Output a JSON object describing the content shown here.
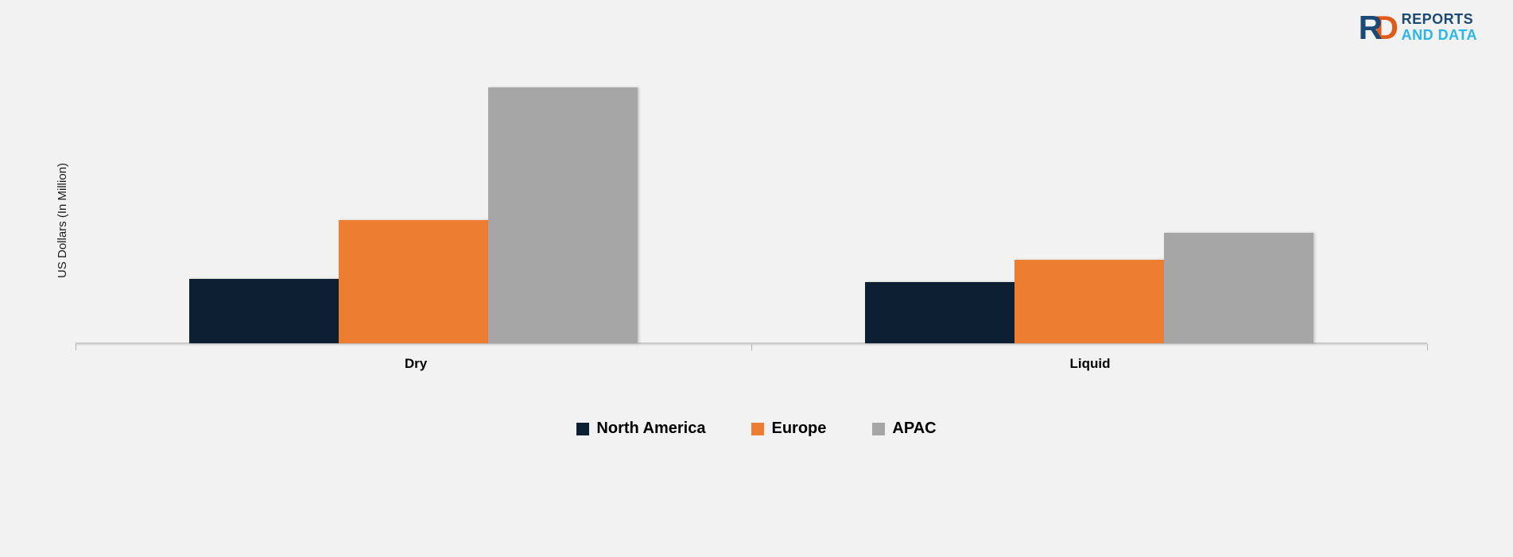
{
  "logo": {
    "mark_letter_r": "R",
    "mark_letter_d": "D",
    "line1": "REPORTS",
    "line2": "AND DATA",
    "color_navy": "#1b4a76",
    "color_cyan": "#29b6ea",
    "color_orange": "#e05a1b"
  },
  "chart_data": {
    "type": "bar",
    "title": "",
    "xlabel": "",
    "ylabel": "US Dollars  (In Million)",
    "categories": [
      "Dry",
      "Liquid"
    ],
    "series": [
      {
        "name": "North America",
        "color": "#0d1f33",
        "values": [
          81,
          77
        ]
      },
      {
        "name": "Europe",
        "color": "#ed7d31",
        "values": [
          155,
          105
        ]
      },
      {
        "name": "APAC",
        "color": "#a6a6a6",
        "values": [
          322,
          139
        ]
      }
    ],
    "ylim": [
      0,
      340
    ],
    "grid": false,
    "legend_position": "bottom",
    "background": "#f2f2f2"
  }
}
